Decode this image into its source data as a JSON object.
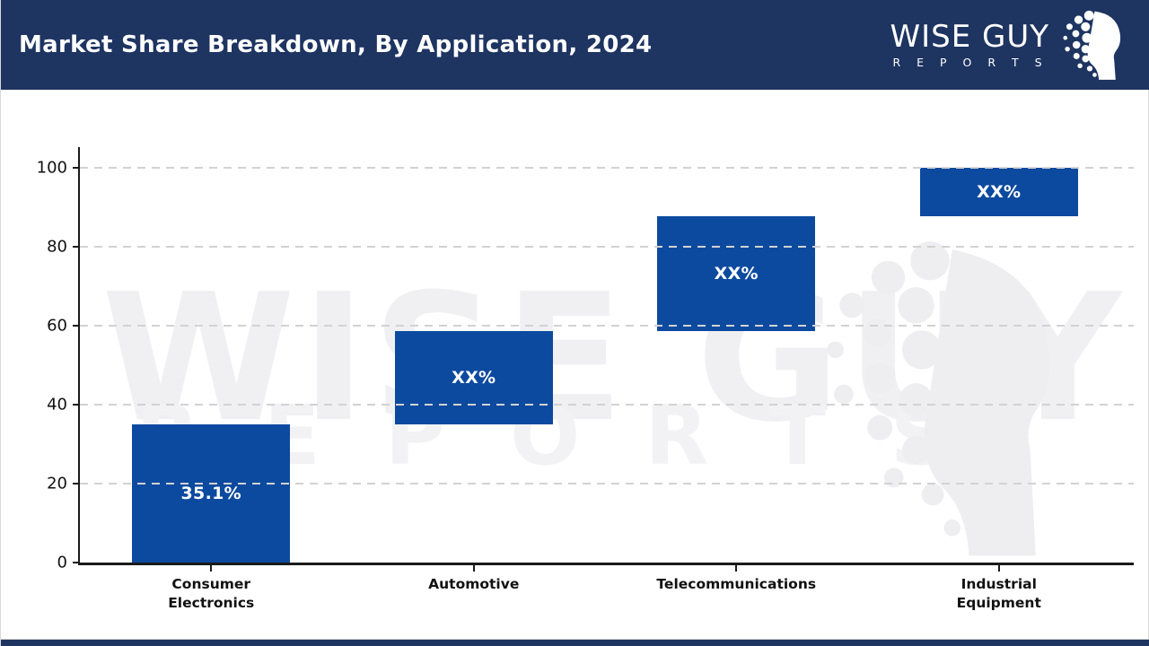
{
  "header": {
    "title": "Market Share Breakdown, By Application, 2024",
    "logo": {
      "line1": "WISE GUY",
      "line2": "R E P O R T S"
    },
    "bg_color": "#1e3461"
  },
  "watermark": {
    "line1": "WISE GUY",
    "line2": "REPORTS"
  },
  "chart_data": {
    "type": "bar",
    "subtype": "waterfall-stacked-percent",
    "title": "Market Share Breakdown, By Application, 2024",
    "categories": [
      "Consumer\nElectronics",
      "Automotive",
      "Telecommunications",
      "Industrial\nEquipment"
    ],
    "segments": [
      {
        "category": "Consumer Electronics",
        "start": 0,
        "end": 35.1,
        "label": "35.1%"
      },
      {
        "category": "Automotive",
        "start": 35.1,
        "end": 58.6,
        "label": "XX%"
      },
      {
        "category": "Telecommunications",
        "start": 58.6,
        "end": 87.7,
        "label": "XX%"
      },
      {
        "category": "Industrial Equipment",
        "start": 87.7,
        "end": 100,
        "label": "XX%"
      }
    ],
    "xlabel": "",
    "ylabel": "",
    "ylim": [
      0,
      100
    ],
    "yticks": [
      0,
      20,
      40,
      60,
      80,
      100
    ],
    "bar_color": "#0c4a9f",
    "grid": true,
    "grid_style": "dashed",
    "legend": false
  }
}
